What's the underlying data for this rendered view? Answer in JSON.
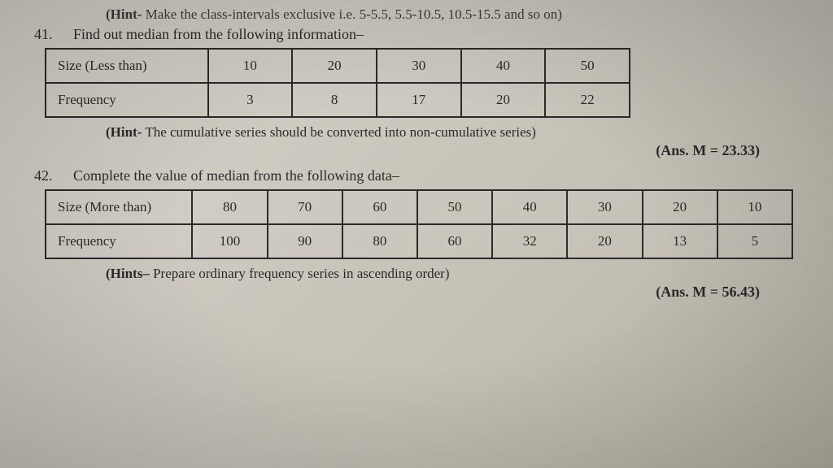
{
  "topHint": {
    "label": "(Hint-",
    "text": " Make the class-intervals exclusive i.e. 5-5.5, 5.5-10.5, 10.5-15.5 and so on)"
  },
  "q41": {
    "number": "41.",
    "text": "Find out median from the following information–",
    "table": {
      "row1Label": "Size (Less than)",
      "row1": [
        "10",
        "20",
        "30",
        "40",
        "50"
      ],
      "row2Label": "Frequency",
      "row2": [
        "3",
        "8",
        "17",
        "20",
        "22"
      ]
    },
    "hint": {
      "label": "(Hint-",
      "text": " The cumulative series should be converted into non-cumulative series)"
    },
    "answer": "(Ans. M = 23.33)"
  },
  "q42": {
    "number": "42.",
    "text": "Complete the value of median from the following data–",
    "table": {
      "row1Label": "Size (More than)",
      "row1": [
        "80",
        "70",
        "60",
        "50",
        "40",
        "30",
        "20",
        "10"
      ],
      "row2Label": "Frequency",
      "row2": [
        "100",
        "90",
        "80",
        "60",
        "32",
        "20",
        "13",
        "5"
      ]
    },
    "hint": {
      "label": "(Hints–",
      "text": " Prepare ordinary frequency series in ascending order)"
    },
    "answer": "(Ans. M = 56.43)"
  },
  "style": {
    "border_color": "#2a2a2a",
    "text_color": "#2a2a2a",
    "bg_gradient_start": "#d8d4cc",
    "bg_gradient_end": "#b8b4a8",
    "body_fontsize": 17,
    "heading_fontsize": 18,
    "table1_width": 720,
    "table2_width": 920
  }
}
